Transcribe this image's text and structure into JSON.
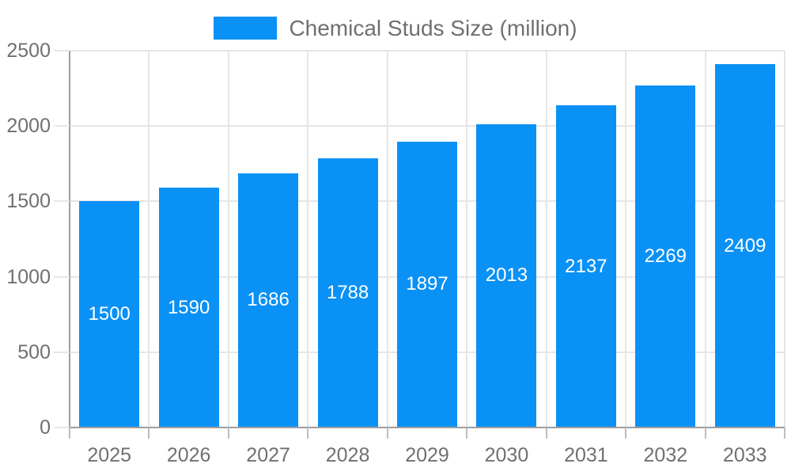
{
  "chart_data": {
    "type": "bar",
    "title": "Chemical Studs Size (million)",
    "legend": {
      "label": "Chemical Studs Size (million)",
      "position": "top"
    },
    "categories": [
      "2025",
      "2026",
      "2027",
      "2028",
      "2029",
      "2030",
      "2031",
      "2032",
      "2033"
    ],
    "series": [
      {
        "name": "Chemical Studs Size (million)",
        "values": [
          1500,
          1590,
          1686,
          1788,
          1897,
          2013,
          2137,
          2269,
          2409
        ]
      }
    ],
    "xlabel": "",
    "ylabel": "",
    "ylim": [
      0,
      2500
    ],
    "yticks": [
      0,
      500,
      1000,
      1500,
      2000,
      2500
    ],
    "grid": true,
    "value_labels": {
      "show": true,
      "position": "center-of-bar"
    }
  },
  "colors": {
    "bar": "#0a91f5",
    "grid": "#e6e6e6",
    "axis": "#9e9e9e",
    "tick": "#bdbdbd",
    "label": "#707070",
    "value_label": "#ffffff",
    "background": "#ffffff"
  }
}
